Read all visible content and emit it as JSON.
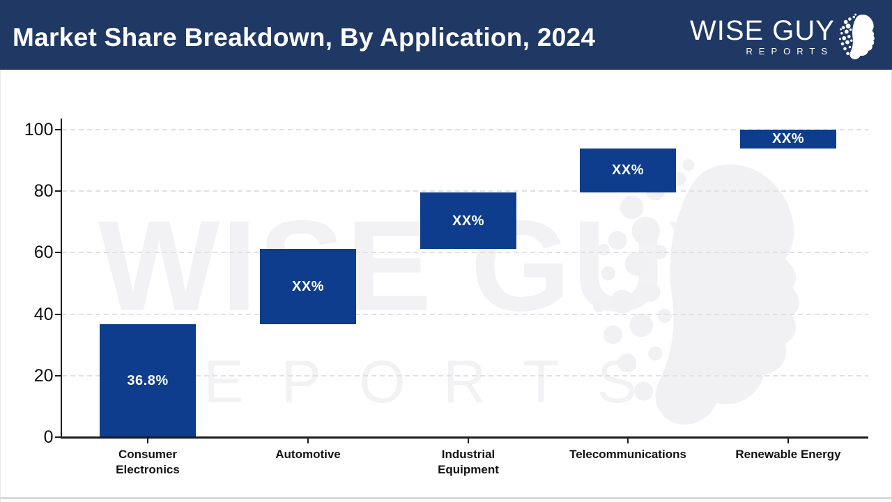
{
  "header": {
    "title": "Market Share Breakdown, By Application, 2024"
  },
  "brand": {
    "name": "WISE GUY",
    "sub": "REPORTS"
  },
  "watermark": {
    "line1": "WISE GUY",
    "line2": "REPORTS"
  },
  "colors": {
    "header_bg": "#203864",
    "bar_fill": "#0d3d8c",
    "bar_label": "#ffffff",
    "grid": "#e1e1e1",
    "axis": "#1a1a1a",
    "watermark": "#f2f2f4"
  },
  "chart_data": {
    "type": "bar",
    "variant": "waterfall (floating segment bars)",
    "title": "Market Share Breakdown, By Application, 2024",
    "categories": [
      "Consumer Electronics",
      "Automotive",
      "Industrial Equipment",
      "Telecommunications",
      "Renewable Energy"
    ],
    "display_labels": [
      "Consumer\nElectronics",
      "Automotive",
      "Industrial\nEquipment",
      "Telecommunications",
      "Renewable Energy"
    ],
    "series": [
      {
        "name": "Market share (%)",
        "segments": [
          {
            "category": "Consumer Electronics",
            "start": 0,
            "end": 36.8,
            "label": "36.8%"
          },
          {
            "category": "Automotive",
            "start": 36.8,
            "end": 61.2,
            "label": "XX%"
          },
          {
            "category": "Industrial Equipment",
            "start": 61.2,
            "end": 79.6,
            "label": "XX%"
          },
          {
            "category": "Telecommunications",
            "start": 79.6,
            "end": 93.9,
            "label": "XX%"
          },
          {
            "category": "Renewable Energy",
            "start": 93.9,
            "end": 100,
            "label": "XX%"
          }
        ]
      }
    ],
    "xlabel": "",
    "ylabel": "",
    "yticks": [
      0,
      20,
      40,
      60,
      80,
      100
    ],
    "ylim": [
      0,
      103
    ],
    "grid": "horizontal dashed",
    "legend": "none"
  }
}
